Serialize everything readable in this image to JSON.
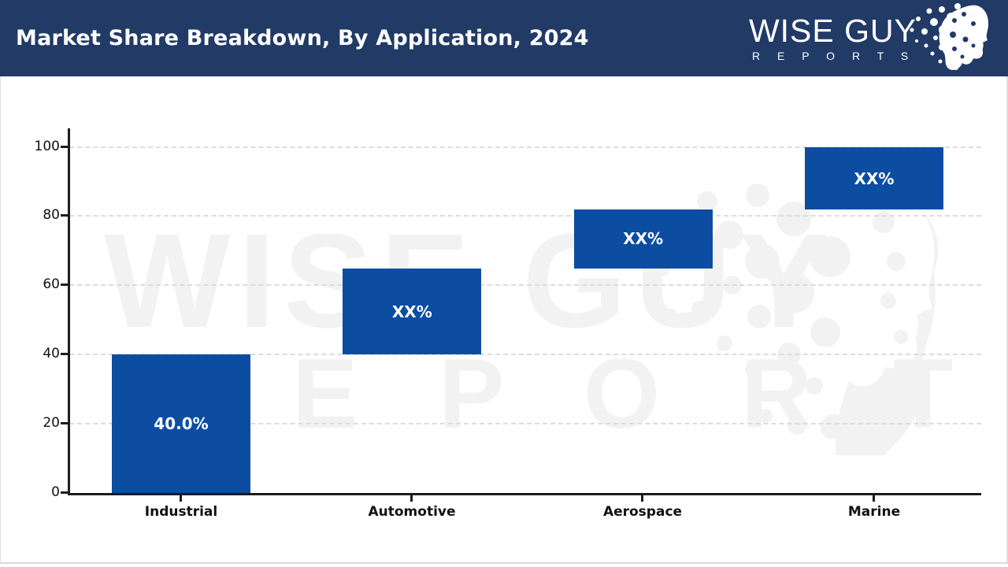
{
  "header": {
    "title": "Market Share Breakdown, By Application, 2024",
    "logo_line1": "WISE GUY",
    "logo_line2": "R E P O R T S"
  },
  "watermark": {
    "line1": "WISE GUY",
    "line2": "R E P O R T S"
  },
  "colors": {
    "header_bg": "#213a66",
    "bar_fill": "#0c4da2",
    "grid": "#dcdcdc",
    "axis": "#1c1c1c",
    "watermark": "#f2f2f2"
  },
  "chart_data": {
    "type": "bar",
    "variant": "waterfall",
    "title": "Market Share Breakdown, By Application, 2024",
    "categories": [
      "Industrial",
      "Automotive",
      "Aerospace",
      "Marine"
    ],
    "segments": [
      {
        "category": "Industrial",
        "start": 0,
        "end": 40,
        "label": "40.0%"
      },
      {
        "category": "Automotive",
        "start": 40,
        "end": 65,
        "label": "XX%"
      },
      {
        "category": "Aerospace",
        "start": 65,
        "end": 82,
        "label": "XX%"
      },
      {
        "category": "Marine",
        "start": 82,
        "end": 100,
        "label": "XX%"
      }
    ],
    "ylim": [
      0,
      100
    ],
    "yticks": [
      0,
      20,
      40,
      60,
      80,
      100
    ],
    "ytick_labels": [
      "0",
      "20",
      "40",
      "60",
      "80",
      "100"
    ],
    "xlabel": "",
    "ylabel": "",
    "grid": "horizontal-dashed",
    "legend": "none"
  }
}
